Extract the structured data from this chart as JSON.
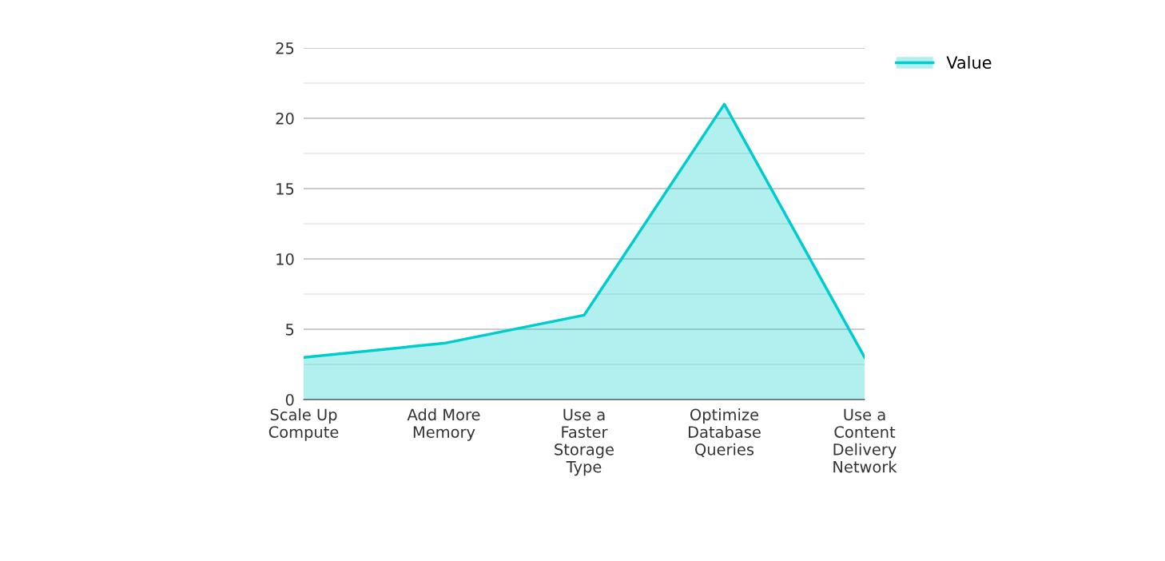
{
  "chart_data": {
    "type": "area",
    "categories": [
      "Scale Up Compute",
      "Add More Memory",
      "Use a Faster Storage Type",
      "Optimize Database Queries",
      "Use a Content Delivery Network"
    ],
    "series": [
      {
        "name": "Value",
        "color": "#00cccc",
        "values": [
          3,
          4,
          6,
          21,
          3
        ]
      }
    ],
    "ylim": [
      0,
      25
    ],
    "yticks": [
      0,
      {
        "value": 2.5,
        "label": null
      },
      5,
      {
        "value": 7.5,
        "label": null
      },
      10,
      {
        "value": 12.5,
        "label": null
      },
      15,
      {
        "value": 17.5,
        "label": null
      },
      20,
      {
        "value": 22.5,
        "label": null
      },
      25
    ],
    "grid": "y",
    "legend": "top right"
  }
}
